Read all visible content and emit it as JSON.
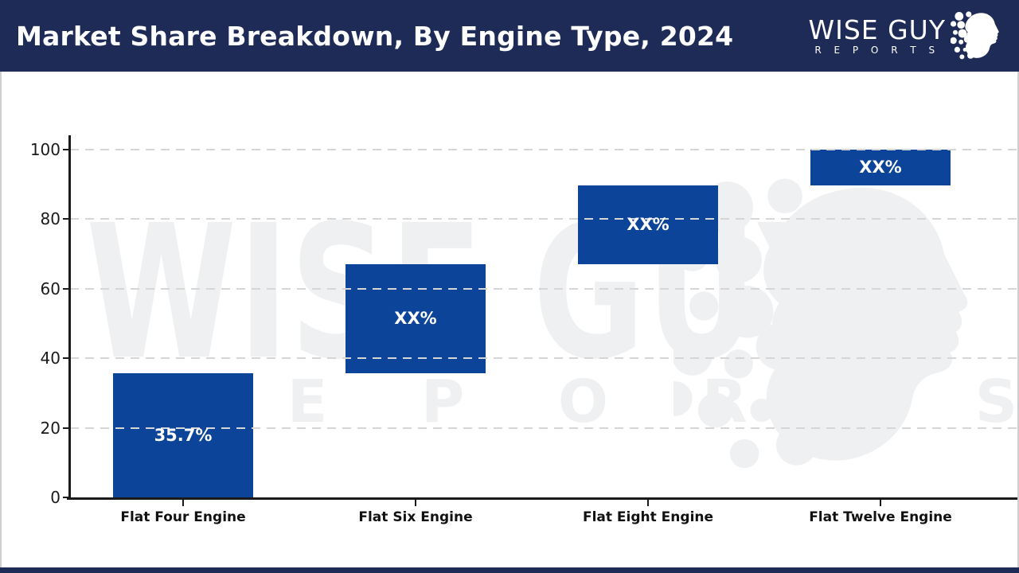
{
  "header": {
    "title": "Market Share Breakdown, By Engine Type, 2024",
    "logo": {
      "wordmark": "WISE GUY",
      "tagline": "R E P O R T S"
    }
  },
  "watermark": {
    "wordmark": "WISE GUY",
    "tagline": "R E P O R T S"
  },
  "colors": {
    "header_bg": "#1e2b57",
    "footer_bg": "#1e2b57",
    "bar_fill": "#0b4499",
    "bar_label_text": "#ffffff",
    "gridline": "#d6d6d6",
    "axis_line": "#1a1a1a",
    "tick_label_text": "#1a1a1a",
    "watermark_gray": "#eff0f2",
    "figure_border": "#cfcfcf",
    "title_text": "#ffffff"
  },
  "chart_data": {
    "type": "bar",
    "subtype": "waterfall-floating-segments",
    "title": "Market Share Breakdown, By Engine Type, 2024",
    "categories": [
      "Flat Four Engine",
      "Flat Six Engine",
      "Flat Eight Engine",
      "Flat Twelve Engine"
    ],
    "segments": [
      {
        "category": "Flat Four Engine",
        "start": 0,
        "end": 35.7,
        "label": "35.7%"
      },
      {
        "category": "Flat Six Engine",
        "start": 35.7,
        "end": 67.0,
        "label": "XX%"
      },
      {
        "category": "Flat Eight Engine",
        "start": 67.0,
        "end": 89.7,
        "label": "XX%"
      },
      {
        "category": "Flat Twelve Engine",
        "start": 89.7,
        "end": 100.0,
        "label": "XX%"
      }
    ],
    "xlabel": "",
    "ylabel": "",
    "ylim": [
      0,
      100
    ],
    "yticks": [
      0,
      20,
      40,
      60,
      80,
      100
    ],
    "grid": "horizontal-dashed",
    "legend": "none"
  }
}
